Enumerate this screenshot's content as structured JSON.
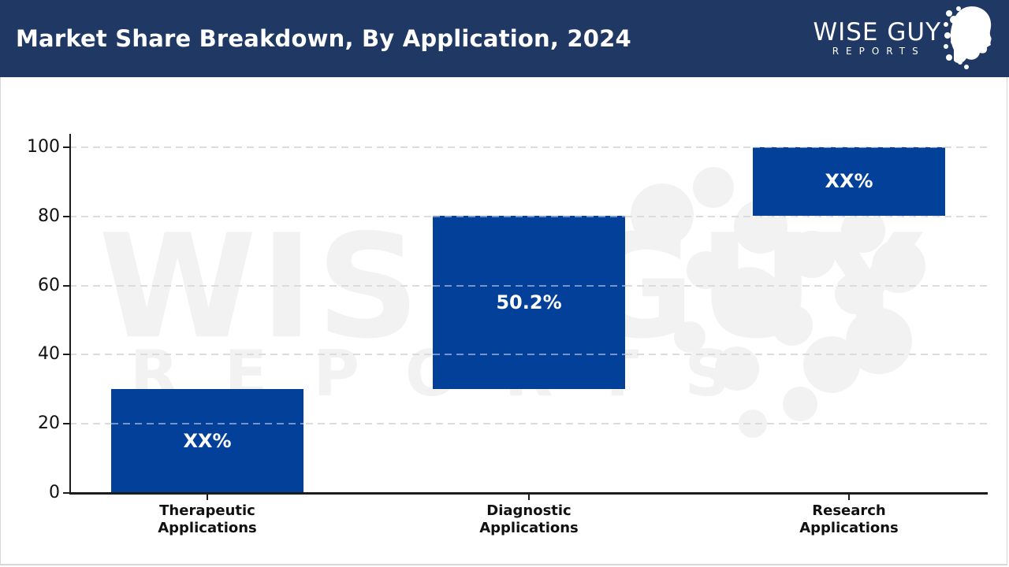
{
  "header": {
    "title": "Market Share Breakdown, By Application, 2024",
    "bg_color": "#1f3864",
    "logo": {
      "line1": "WISE GUY",
      "line2": "REPORTS"
    }
  },
  "watermark": {
    "line1": "WISE GUY",
    "line2": "REPORTS",
    "color": "#f2f2f3"
  },
  "chart_data": {
    "type": "bar",
    "subtype": "floating-waterfall",
    "title": "Market Share Breakdown, By Application, 2024",
    "categories": [
      {
        "line1": "Therapeutic",
        "line2": "Applications"
      },
      {
        "line1": "Diagnostic",
        "line2": "Applications"
      },
      {
        "line1": "Research",
        "line2": "Applications"
      }
    ],
    "bars": [
      {
        "category": "Therapeutic Applications",
        "base": 0,
        "top": 30,
        "label": "XX%"
      },
      {
        "category": "Diagnostic Applications",
        "base": 30,
        "top": 80.2,
        "label": "50.2%"
      },
      {
        "category": "Research Applications",
        "base": 80.2,
        "top": 100,
        "label": "XX%"
      }
    ],
    "yticks": [
      0,
      20,
      40,
      60,
      80,
      100
    ],
    "ylim": [
      0,
      104
    ],
    "xlabel": "",
    "ylabel": "",
    "legend": "none",
    "grid": "horizontal-dashed",
    "bar_color": "#03409a",
    "grid_color": "#dcdcdc",
    "axis_color": "#1c1c1c"
  }
}
